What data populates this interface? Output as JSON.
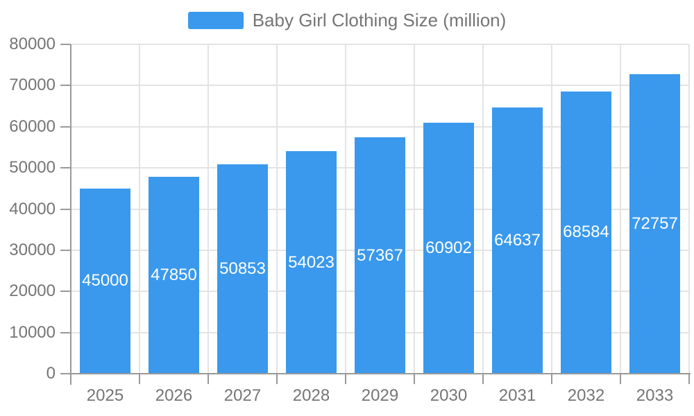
{
  "chart_data": {
    "type": "bar",
    "title": "Baby Girl Clothing Size (million)",
    "legend": {
      "label": "Baby Girl Clothing Size (million)",
      "position": "top"
    },
    "categories": [
      "2025",
      "2026",
      "2027",
      "2028",
      "2029",
      "2030",
      "2031",
      "2032",
      "2033"
    ],
    "series": [
      {
        "name": "Baby Girl Clothing Size (million)",
        "values": [
          45000,
          47850,
          50853,
          54023,
          57367,
          60902,
          64637,
          68584,
          72757
        ]
      }
    ],
    "data_labels": [
      "45000",
      "47850",
      "50853",
      "54023",
      "57367",
      "60902",
      "64637",
      "68584",
      "72757"
    ],
    "xlabel": "",
    "ylabel": "",
    "ylim": [
      0,
      80000
    ],
    "ytick_values": [
      0,
      10000,
      20000,
      30000,
      40000,
      50000,
      60000,
      70000,
      80000
    ],
    "ytick_labels": [
      "0",
      "10000",
      "20000",
      "30000",
      "40000",
      "50000",
      "60000",
      "70000",
      "80000"
    ],
    "grid": true,
    "colors": {
      "bar": "#3A99EC",
      "bar_label_text": "#FFFFFF",
      "axis_text": "#757575",
      "legend_text": "#757575",
      "gridline": "#E3E3E3",
      "axis_line": "#999999",
      "tick": "#999999",
      "background": "#FFFFFF"
    }
  }
}
